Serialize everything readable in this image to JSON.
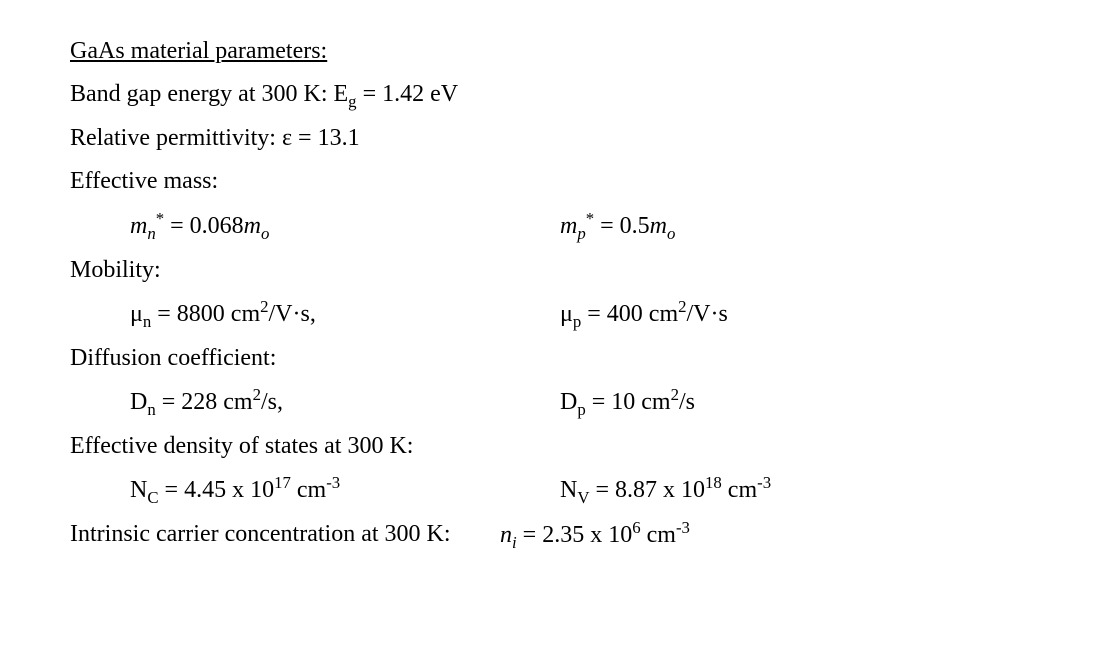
{
  "title": "GaAs material parameters:",
  "lines": {
    "bandgap_label": "Band gap energy at 300 K: ",
    "bandgap_sym_pre": "E",
    "bandgap_sym_sub": "g",
    "bandgap_val": " = 1.42 eV",
    "perm_label": "Relative permittivity: ",
    "perm_sym": "ε",
    "perm_val": " = 13.1",
    "effmass_label": "Effective mass:",
    "mn_pre": "m",
    "mn_sub": "n",
    "mn_sup": "*",
    "mn_eq": " = 0.068",
    "mn_post_pre": "m",
    "mn_post_sub": "o",
    "mp_pre": "m",
    "mp_sub": "p",
    "mp_sup": "*",
    "mp_eq": " = 0.5",
    "mp_post_pre": "m",
    "mp_post_sub": "o",
    "mobility_label": "Mobility:",
    "mun_pre": "μ",
    "mun_sub": "n",
    "mun_val": " = 8800 cm",
    "mun_sup": "2",
    "mun_post": "/V·s,",
    "mup_pre": "μ",
    "mup_sub": "p",
    "mup_val": " = 400 cm",
    "mup_sup": "2",
    "mup_post": "/V·s",
    "diff_label": "Diffusion coefficient:",
    "dn_pre": "D",
    "dn_sub": "n",
    "dn_val": " = 228 cm",
    "dn_sup": "2",
    "dn_post": "/s,",
    "dp_pre": "D",
    "dp_sub": "p",
    "dp_val": " = 10 cm",
    "dp_sup": "2",
    "dp_post": "/s",
    "dos_label": "Effective density of states at 300 K:",
    "nc_pre": "N",
    "nc_sub": "C",
    "nc_val": " = 4.45 x 10",
    "nc_sup": "17",
    "nc_post": " cm",
    "nc_sup2": "-3",
    "nv_pre": "N",
    "nv_sub": "V",
    "nv_val": " = 8.87 x 10",
    "nv_sup": "18",
    "nv_post": " cm",
    "nv_sup2": "-3",
    "ni_label": "Intrinsic carrier concentration at 300 K:",
    "ni_pre": "n",
    "ni_sub": "i",
    "ni_val": " = 2.35 x 10",
    "ni_sup": "6",
    "ni_post": " cm",
    "ni_sup2": "-3"
  }
}
